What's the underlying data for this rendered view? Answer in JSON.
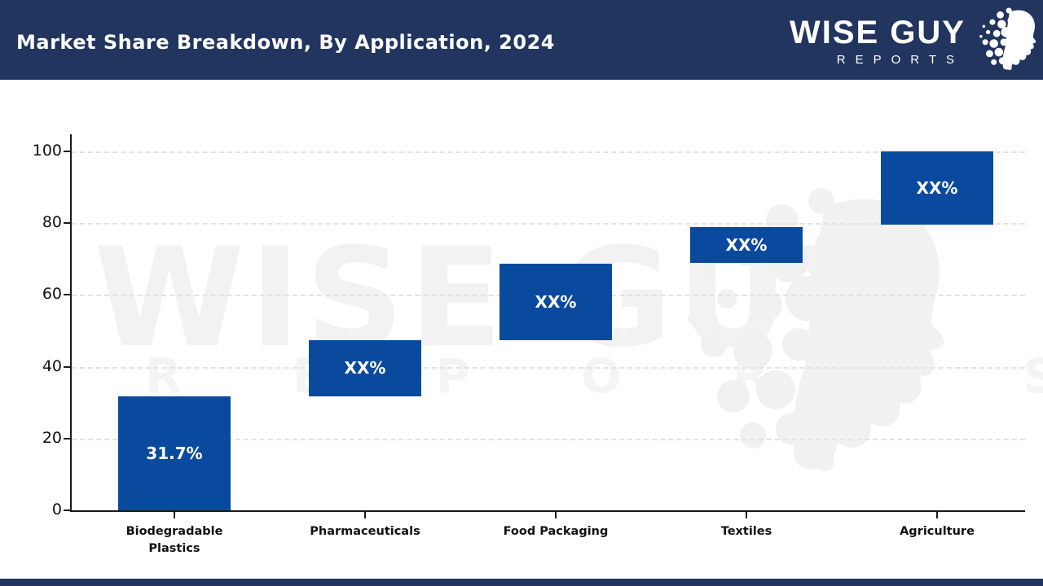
{
  "header": {
    "title": "Market Share Breakdown, By Application, 2024"
  },
  "logo": {
    "line1": "WISE GUY",
    "line2": "REPORTS"
  },
  "watermark": {
    "line1": "WISE GUY",
    "line2": "REPORTS"
  },
  "colors": {
    "header_navy": "#21355e",
    "bar_blue": "#0a4a9e",
    "grid_gray": "#e2e2e2",
    "bar_label_white": "#ffffff"
  },
  "chart_data": {
    "type": "bar",
    "subtype": "waterfall-floating-bars",
    "title": "Market Share Breakdown, By Application, 2024",
    "categories": [
      "Biodegradable Plastics",
      "Pharmaceuticals",
      "Food Packaging",
      "Textiles",
      "Agriculture"
    ],
    "segments": [
      {
        "category": "Biodegradable Plastics",
        "start": 0,
        "end": 31.7,
        "label": "31.7%"
      },
      {
        "category": "Pharmaceuticals",
        "start": 31.7,
        "end": 47.5,
        "label": "XX%"
      },
      {
        "category": "Food Packaging",
        "start": 47.5,
        "end": 68.6,
        "label": "XX%"
      },
      {
        "category": "Textiles",
        "start": 68.9,
        "end": 78.9,
        "label": "XX%"
      },
      {
        "category": "Agriculture",
        "start": 79.5,
        "end": 100,
        "label": "XX%"
      }
    ],
    "xlabel": "",
    "ylabel": "",
    "ylim": [
      0,
      105
    ],
    "yticks": [
      0,
      20,
      40,
      60,
      80,
      100
    ],
    "grid": "horizontal-dashed",
    "legend": "none"
  }
}
